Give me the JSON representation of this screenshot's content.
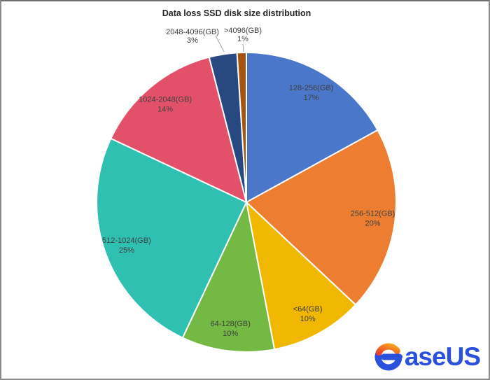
{
  "chart_data": {
    "type": "pie",
    "title": "Data loss SSD disk size distribution",
    "unit": "percent",
    "direction": "clockwise",
    "start_angle_deg": 0,
    "legend": "none",
    "label_style": "category name and percent inside slice; small slices labeled outside with leader lines",
    "title_color": "#262626",
    "label_text_color": "#404040",
    "leader_line_color": "#a6a6a6",
    "slice_border_color": "#ffffff",
    "slices": [
      {
        "label": "128-256(GB)",
        "value": 17,
        "display": "17%",
        "color": "#4A77C9",
        "label_position": "inside"
      },
      {
        "label": "256-512(GB)",
        "value": 20,
        "display": "20%",
        "color": "#ED7D31",
        "label_position": "inside"
      },
      {
        "label": "<64(GB)",
        "value": 10,
        "display": "10%",
        "color": "#F0B800",
        "label_position": "inside"
      },
      {
        "label": "64-128(GB)",
        "value": 10,
        "display": "10%",
        "color": "#73B943",
        "label_position": "inside"
      },
      {
        "label": "512-1024(GB)",
        "value": 25,
        "display": "25%",
        "color": "#2FC0B2",
        "label_position": "inside"
      },
      {
        "label": "1024-2048(GB)",
        "value": 14,
        "display": "14%",
        "color": "#E3506A",
        "label_position": "inside"
      },
      {
        "label": "2048-4096(GB)",
        "value": 3,
        "display": "3%",
        "color": "#28497F",
        "label_position": "outside"
      },
      {
        "label": ">4096(GB)",
        "value": 1,
        "display": "1%",
        "color": "#A5550F",
        "label_position": "outside"
      }
    ]
  },
  "logo": {
    "brand": "EaseUS",
    "visible_text": "aseUS",
    "blue": "#2B50DB",
    "orange_gradient_start": "#E8432C",
    "orange_gradient_end": "#F9A11B"
  }
}
